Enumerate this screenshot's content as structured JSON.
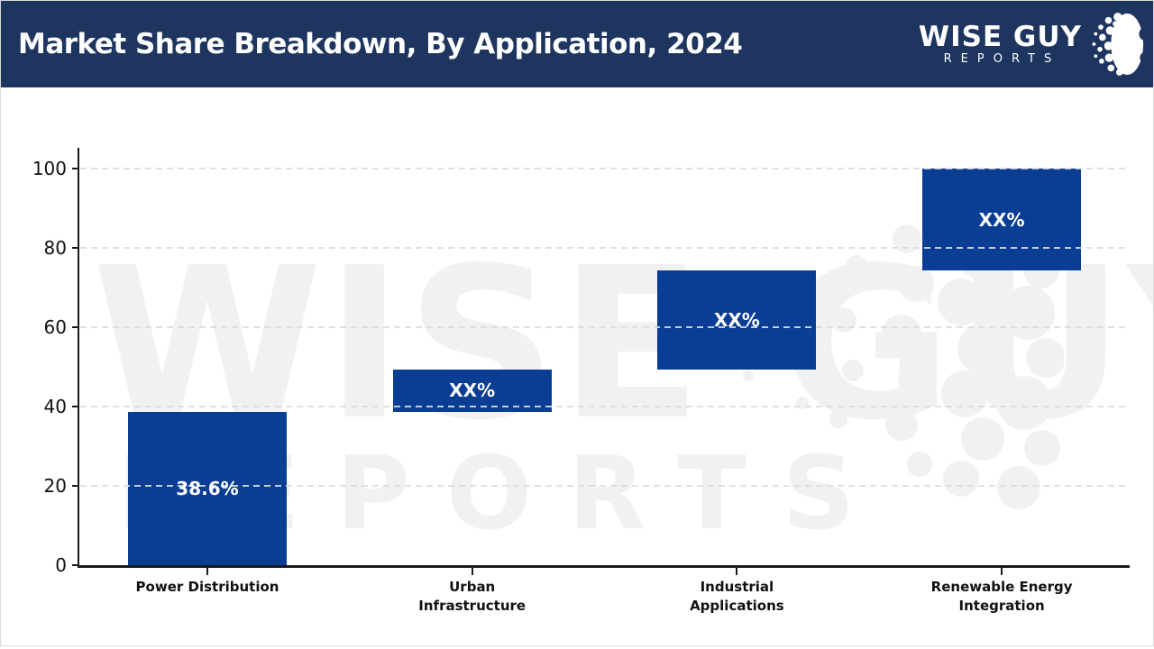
{
  "header": {
    "title": "Market Share Breakdown, By Application, 2024",
    "logo": {
      "wordmark": "WISE GUY",
      "subtitle": "REPORTS"
    }
  },
  "watermark": {
    "wordmark": "WISE GUY",
    "subtitle": "REPORTS"
  },
  "chart_data": {
    "type": "bar",
    "subtype": "waterfall",
    "title": "Market Share Breakdown, By Application, 2024",
    "categories": [
      "Power Distribution",
      "Urban Infrastructure",
      "Industrial Applications",
      "Renewable Energy Integration"
    ],
    "category_lines": [
      [
        "Power Distribution"
      ],
      [
        "Urban",
        "Infrastructure"
      ],
      [
        "Industrial",
        "Applications"
      ],
      [
        "Renewable Energy",
        "Integration"
      ]
    ],
    "segments": [
      {
        "category": "Power Distribution",
        "start": 0,
        "end": 38.6,
        "label": "38.6%"
      },
      {
        "category": "Urban Infrastructure",
        "start": 38.6,
        "end": 49.4,
        "label": "XX%"
      },
      {
        "category": "Industrial Applications",
        "start": 49.4,
        "end": 74.3,
        "label": "XX%"
      },
      {
        "category": "Renewable Energy Integration",
        "start": 74.3,
        "end": 100.0,
        "label": "XX%"
      }
    ],
    "yticks": [
      0,
      20,
      40,
      60,
      80,
      100
    ],
    "ylim": [
      0,
      105
    ],
    "xlabel": "",
    "ylabel": "",
    "grid": "horizontal-dashed",
    "legend": "none",
    "bar_color": "#0a3d94",
    "value_label_color": "#ffffff"
  },
  "colors": {
    "header_bg": "#1e3560",
    "bar": "#0a3d94",
    "axis": "#1a1a1a",
    "gridline": "#dcdcdc",
    "watermark": "#f1f1f1",
    "page_border": "#d9d9d9",
    "tick_text": "#111111"
  }
}
